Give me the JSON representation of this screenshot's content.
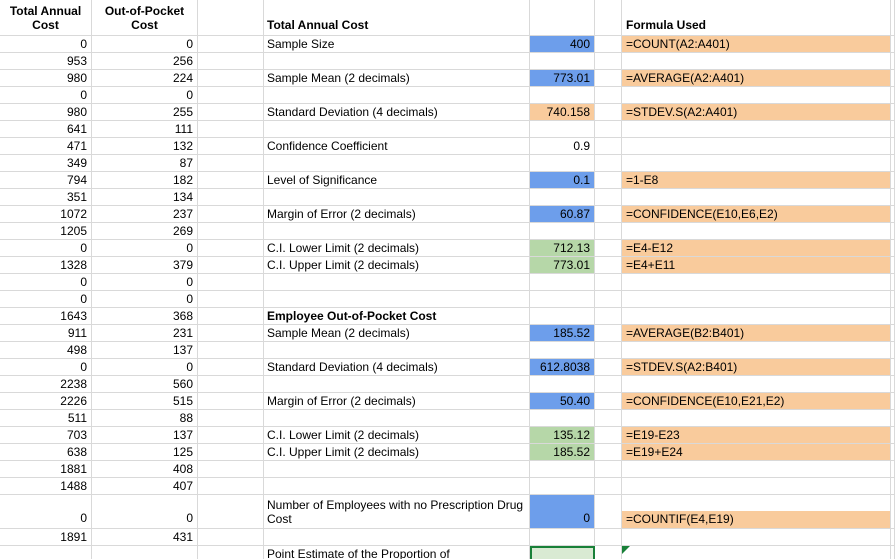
{
  "colors": {
    "blue_fill": "#6d9eeb",
    "orange_fill": "#f9cb9c",
    "green_fill": "#b6d7a8",
    "selected_fill": "#d9ead3",
    "selected_border": "#188038",
    "gridline": "#d9d9d9"
  },
  "headers": {
    "col_a": "Total Annual Cost",
    "col_b": "Out-of-Pocket Cost",
    "col_d": "Total Annual Cost",
    "col_g": "Formula Used"
  },
  "rows": [
    {
      "a": "0",
      "b": "0",
      "d": "Sample Size",
      "e": "400",
      "e_fill": "blue",
      "g": "=COUNT(A2:A401)",
      "g_fill": "orange"
    },
    {
      "a": "953",
      "b": "256"
    },
    {
      "a": "980",
      "b": "224",
      "d": "Sample Mean (2 decimals)",
      "e": "773.01",
      "e_fill": "blue",
      "g": "=AVERAGE(A2:A401)",
      "g_fill": "orange"
    },
    {
      "a": "0",
      "b": "0"
    },
    {
      "a": "980",
      "b": "255",
      "d": "Standard Deviation (4 decimals)",
      "e": "740.158",
      "e_fill": "orange",
      "g": "=STDEV.S(A2:A401)",
      "g_fill": "orange"
    },
    {
      "a": "641",
      "b": "111"
    },
    {
      "a": "471",
      "b": "132",
      "d": "Confidence Coefficient",
      "e": "0.9"
    },
    {
      "a": "349",
      "b": "87"
    },
    {
      "a": "794",
      "b": "182",
      "d": "Level of Significance",
      "e": "0.1",
      "e_fill": "blue",
      "g": "=1-E8",
      "g_fill": "orange"
    },
    {
      "a": "351",
      "b": "134"
    },
    {
      "a": "1072",
      "b": "237",
      "d": "Margin of Error (2 decimals)",
      "e": "60.87",
      "e_fill": "blue",
      "g": "=CONFIDENCE(E10,E6,E2)",
      "g_fill": "orange"
    },
    {
      "a": "1205",
      "b": "269"
    },
    {
      "a": "0",
      "b": "0",
      "d": "C.I. Lower Limit (2 decimals)",
      "e": "712.13",
      "e_fill": "green",
      "g": "=E4-E12",
      "g_fill": "orange"
    },
    {
      "a": "1328",
      "b": "379",
      "d": "C.I. Upper Limit (2 decimals)",
      "e": "773.01",
      "e_fill": "green",
      "g": "=E4+E11",
      "g_fill": "orange"
    },
    {
      "a": "0",
      "b": "0"
    },
    {
      "a": "0",
      "b": "0"
    },
    {
      "a": "1643",
      "b": "368",
      "d": "Employee Out-of-Pocket Cost",
      "d_bold": true
    },
    {
      "a": "911",
      "b": "231",
      "d": "Sample Mean (2 decimals)",
      "e": "185.52",
      "e_fill": "blue",
      "g": "=AVERAGE(B2:B401)",
      "g_fill": "orange"
    },
    {
      "a": "498",
      "b": "137"
    },
    {
      "a": "0",
      "b": "0",
      "d": "Standard Deviation (4 decimals)",
      "e": "612.8038",
      "e_fill": "blue",
      "g": "=STDEV.S(A2:B401)",
      "g_fill": "orange"
    },
    {
      "a": "2238",
      "b": "560"
    },
    {
      "a": "2226",
      "b": "515",
      "d": "Margin of Error (2 decimals)",
      "e": "50.40",
      "e_fill": "blue",
      "g": "=CONFIDENCE(E10,E21,E2)",
      "g_fill": "orange"
    },
    {
      "a": "511",
      "b": "88"
    },
    {
      "a": "703",
      "b": "137",
      "d": "C.I. Lower Limit (2 decimals)",
      "e": "135.12",
      "e_fill": "green",
      "g": "=E19-E23",
      "g_fill": "orange"
    },
    {
      "a": "638",
      "b": "125",
      "d": "C.I. Upper Limit (2 decimals)",
      "e": "185.52",
      "e_fill": "green",
      "g": "=E19+E24",
      "g_fill": "orange"
    },
    {
      "a": "1881",
      "b": "408"
    },
    {
      "a": "1488",
      "b": "407"
    },
    {
      "a": "0",
      "b": "0",
      "d": "Number of Employees with no Prescription Drug Cost",
      "e": "0",
      "e_fill": "blue",
      "g": "=COUNTIF(E4,E19)",
      "g_fill": "orange",
      "tall": true
    },
    {
      "a": "1891",
      "b": "431"
    },
    {
      "d": "Point Estimate of the Proportion of",
      "e": "",
      "e_selected": true,
      "g_marker": true
    }
  ]
}
